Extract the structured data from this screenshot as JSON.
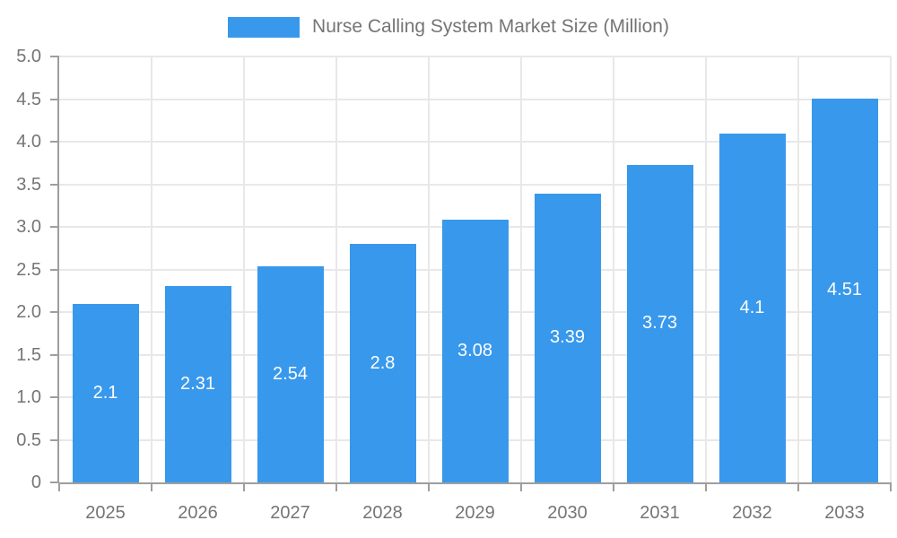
{
  "legend": {
    "label": "Nurse Calling System Market Size (Million)"
  },
  "colors": {
    "bar": "#3898EC",
    "grid": "#E8E8E8",
    "axis": "#9E9E9E",
    "text": "#757575",
    "bar_label": "#FFFFFF",
    "background": "#FFFFFF"
  },
  "chart_data": {
    "type": "bar",
    "title": "Nurse Calling System Market Size (Million)",
    "categories": [
      "2025",
      "2026",
      "2027",
      "2028",
      "2029",
      "2030",
      "2031",
      "2032",
      "2033"
    ],
    "values": [
      2.1,
      2.31,
      2.54,
      2.8,
      3.08,
      3.39,
      3.73,
      4.1,
      4.51
    ],
    "value_labels": [
      "2.1",
      "2.31",
      "2.54",
      "2.8",
      "3.08",
      "3.39",
      "3.73",
      "4.1",
      "4.51"
    ],
    "xlabel": "",
    "ylabel": "",
    "ylim": [
      0,
      5
    ],
    "ytick_interval": 0.5,
    "ytick_labels": [
      "0",
      "0.5",
      "1.0",
      "1.5",
      "2.0",
      "2.5",
      "3.0",
      "3.5",
      "4.0",
      "4.5",
      "5.0"
    ],
    "grid": true,
    "legend_position": "top-center",
    "bar_label_position": "center-inside"
  }
}
